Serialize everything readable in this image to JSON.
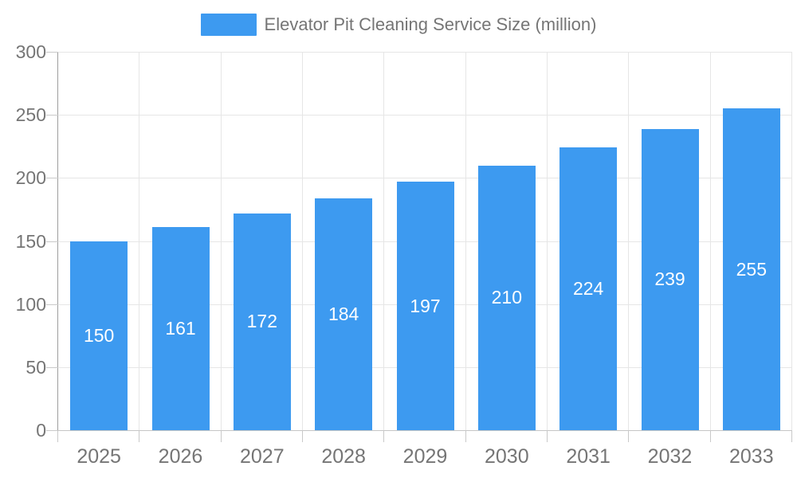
{
  "legend": {
    "label": "Elevator Pit Cleaning Service Size (million)"
  },
  "colors": {
    "bar": "#3D9AF0",
    "gridline": "#E6E6E6",
    "y_axis_line": "#9E9E9E",
    "baseline": "#C6C6C6",
    "tick": "#C9C9C9",
    "axis_text": "#757575",
    "value_text": "#FFFFFF"
  },
  "chart_data": {
    "type": "bar",
    "title": "Elevator Pit Cleaning Service Size (million)",
    "categories": [
      "2025",
      "2026",
      "2027",
      "2028",
      "2029",
      "2030",
      "2031",
      "2032",
      "2033"
    ],
    "values": [
      150,
      161,
      172,
      184,
      197,
      210,
      224,
      239,
      255
    ],
    "xlabel": "",
    "ylabel": "",
    "ylim": [
      0,
      300
    ],
    "ytick_step": 50,
    "ytick_labels": [
      "0",
      "50",
      "100",
      "150",
      "200",
      "250",
      "300"
    ],
    "grid": true,
    "legend_position": "top",
    "bar_labels": "inside-center"
  }
}
